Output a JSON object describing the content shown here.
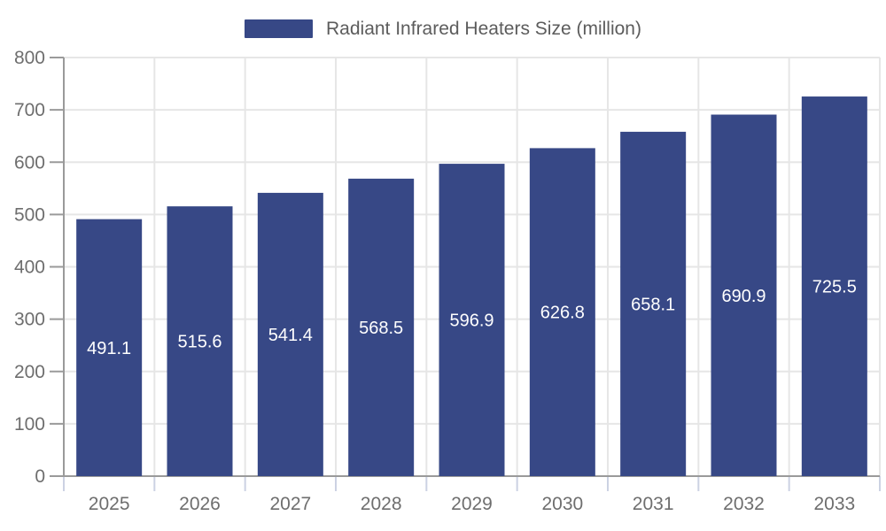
{
  "chart_data": {
    "type": "bar",
    "title": "",
    "legend": "Radiant Infrared Heaters Size (million)",
    "categories": [
      "2025",
      "2026",
      "2027",
      "2028",
      "2029",
      "2030",
      "2031",
      "2032",
      "2033"
    ],
    "values": [
      491.1,
      515.6,
      541.4,
      568.5,
      596.9,
      626.8,
      658.1,
      690.9,
      725.5
    ],
    "value_label_decimals": 1,
    "ylim": [
      0,
      800
    ],
    "ytick_step": 100,
    "grid": true,
    "legend_position": "top-center",
    "colors": {
      "bar": "#374886",
      "grid_line": "#e6e6e6",
      "axis_line": "#9a9a9a",
      "x_boundary_tick": "#ccd2e3",
      "tick_label": "#6e6e6e",
      "legend_text": "#5c5c5c",
      "value_label": "#ffffff",
      "background": "#ffffff"
    }
  }
}
